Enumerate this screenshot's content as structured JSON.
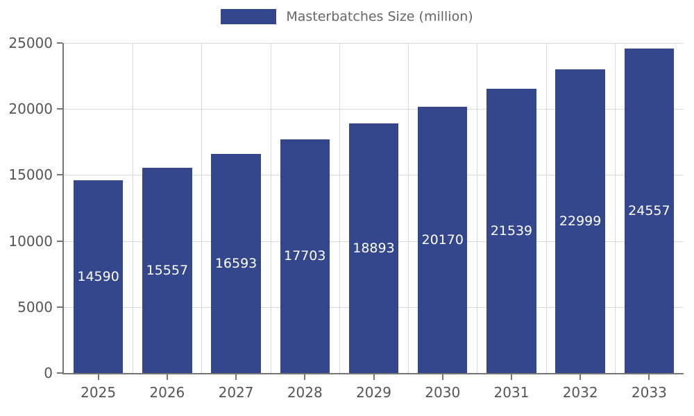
{
  "chart_data": {
    "type": "bar",
    "title": "",
    "legend": "Masterbatches Size (million)",
    "categories": [
      "2025",
      "2026",
      "2027",
      "2028",
      "2029",
      "2030",
      "2031",
      "2032",
      "2033"
    ],
    "values": [
      14590,
      15557,
      16593,
      17703,
      18893,
      20170,
      21539,
      22999,
      24557
    ],
    "xlabel": "",
    "ylabel": "",
    "ylim": [
      0,
      25000
    ],
    "yticks": [
      0,
      5000,
      10000,
      15000,
      20000,
      25000
    ],
    "grid": true,
    "legend_position": "top",
    "bar_color": "#34478c",
    "value_label_color": "#ffffff"
  }
}
